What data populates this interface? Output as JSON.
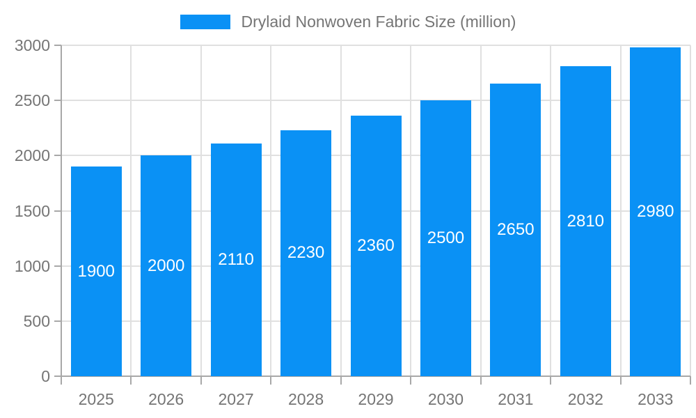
{
  "chart_data": {
    "type": "bar",
    "title": "",
    "legend": "Drylaid Nonwoven Fabric Size (million)",
    "legend_position": "top-center",
    "categories": [
      "2025",
      "2026",
      "2027",
      "2028",
      "2029",
      "2030",
      "2031",
      "2032",
      "2033"
    ],
    "values": [
      1900,
      2000,
      2110,
      2230,
      2360,
      2500,
      2650,
      2810,
      2980
    ],
    "xlabel": "",
    "ylabel": "",
    "ylim": [
      0,
      3000
    ],
    "yticks": [
      0,
      500,
      1000,
      1500,
      2000,
      2500,
      3000
    ],
    "grid": true,
    "colors": {
      "bar": "#0a91f5",
      "grid": "#e0e0e0",
      "axis": "#a8a8a8",
      "tick_label": "#757575",
      "value_label": "#ffffff",
      "legend_label": "#757575"
    }
  }
}
